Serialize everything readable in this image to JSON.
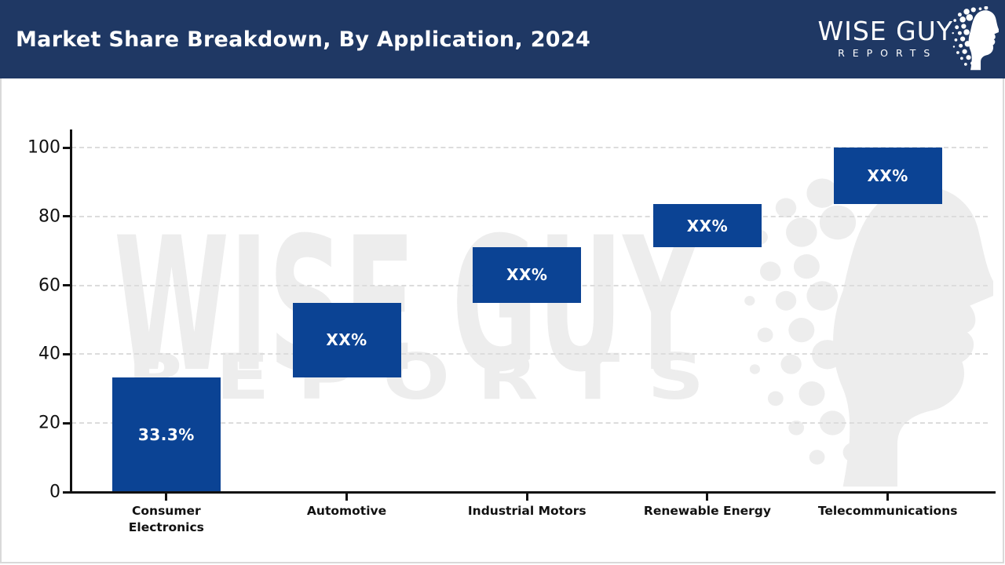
{
  "header": {
    "title": "Market Share Breakdown, By Application, 2024",
    "logo": {
      "wordmark": "WISE GUY",
      "subtext": "REPORTS"
    }
  },
  "watermark": {
    "wordmark": "WISE GUY",
    "subtext": "R E P O R T S"
  },
  "chart_data": {
    "type": "bar",
    "subtype": "stepped-waterfall",
    "title": "Market Share Breakdown, By Application, 2024",
    "categories": [
      "Consumer Electronics",
      "Automotive",
      "Industrial Motors",
      "Renewable Energy",
      "Telecommunications"
    ],
    "category_labels": [
      "Consumer\nElectronics",
      "Automotive",
      "Industrial Motors",
      "Renewable Energy",
      "Telecommunications"
    ],
    "bars": [
      {
        "category": "Consumer Electronics",
        "start": 0,
        "end": 33.3,
        "label": "33.3%"
      },
      {
        "category": "Automotive",
        "start": 33.3,
        "end": 55.0,
        "label": "XX%"
      },
      {
        "category": "Industrial Motors",
        "start": 55.0,
        "end": 71.0,
        "label": "XX%"
      },
      {
        "category": "Renewable Energy",
        "start": 71.0,
        "end": 83.5,
        "label": "XX%"
      },
      {
        "category": "Telecommunications",
        "start": 83.5,
        "end": 100,
        "label": "XX%"
      }
    ],
    "ylim": [
      0,
      100
    ],
    "yticks": [
      0,
      20,
      40,
      60,
      80,
      100
    ],
    "xlabel": "",
    "ylabel": "",
    "grid": "horizontal-dashed",
    "legend": "none",
    "colors": {
      "bar": "#0B4394",
      "bar_label": "#FFFFFF",
      "header_bg": "#1F3864",
      "header_text": "#FFFFFF",
      "grid": "#DCDCDC",
      "axis": "#111111",
      "watermark": "#EDEDED",
      "edge_line": "#D9D9D9"
    }
  }
}
